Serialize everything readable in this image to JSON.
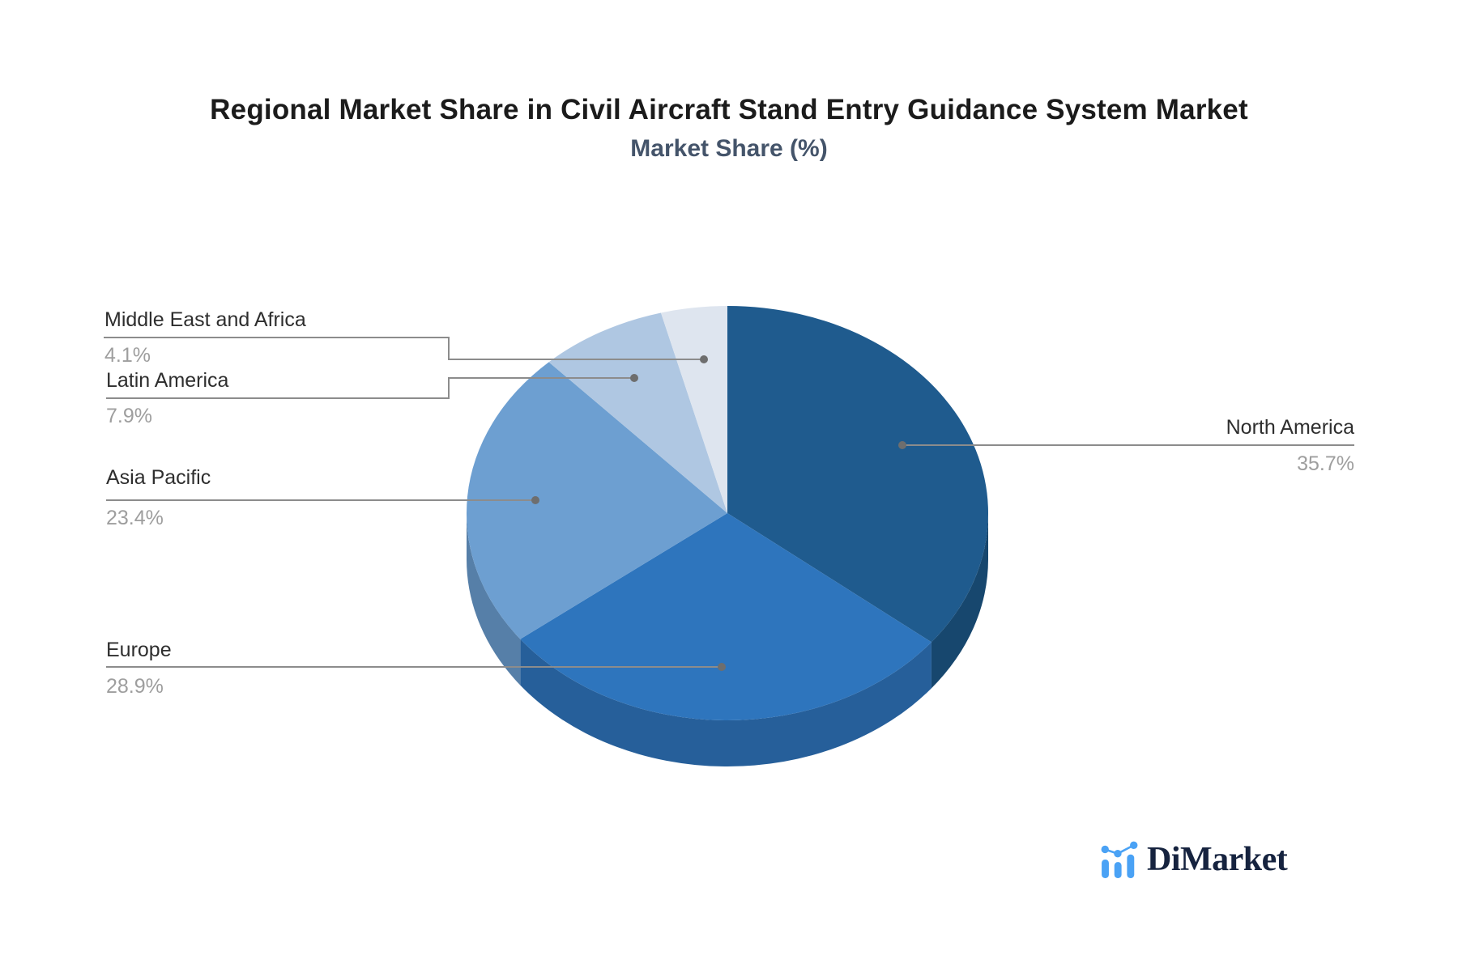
{
  "title": "Regional Market Share in Civil Aircraft Stand Entry Guidance System Market",
  "subtitle": "Market Share (%)",
  "styles": {
    "title_color": "#1b1b1b",
    "subtitle_color": "#44546a",
    "label_color": "#2e2e2e",
    "percent_color": "#9e9e9e",
    "leader_color": "#8c8c8c",
    "leader_dot_color": "#6e6e6e",
    "background": "#ffffff"
  },
  "brand": {
    "name": "DiMarket",
    "icon": "bar-chart-logo-icon",
    "icon_color": "#4aa2f5",
    "text_color": "#16233f"
  },
  "chart_data": {
    "type": "pie",
    "style": "3d",
    "title": "Regional Market Share in Civil Aircraft Stand Entry Guidance System Market",
    "subtitle": "Market Share (%)",
    "unit": "%",
    "start_angle_deg": 0,
    "direction": "clockwise",
    "legend_position": "callout-labels",
    "labels": [
      "North America",
      "Europe",
      "Asia Pacific",
      "Latin America",
      "Middle East and Africa"
    ],
    "values": [
      35.7,
      28.9,
      23.4,
      7.9,
      4.1
    ],
    "display_values": [
      "35.7%",
      "28.9%",
      "23.4%",
      "7.9%",
      "4.1%"
    ],
    "colors": [
      "#1f5b8e",
      "#2e75bd",
      "#6d9fd1",
      "#afc7e2",
      "#dee5ef"
    ],
    "side_colors": [
      "#17476e",
      "#265f9a",
      "#567fa8",
      "#8ea8c4",
      "#b9c3d1"
    ]
  }
}
